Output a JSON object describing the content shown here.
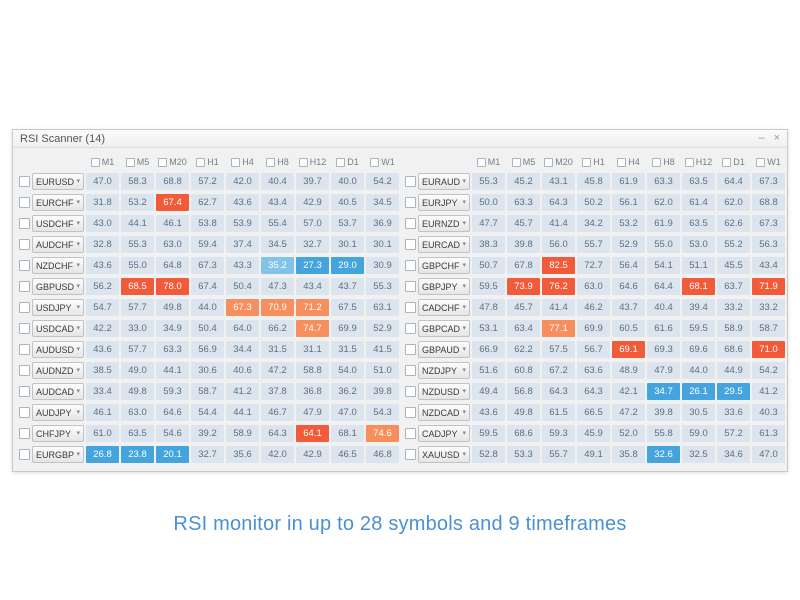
{
  "window": {
    "title": "RSI Scanner (14)",
    "minimize_icon": "–",
    "close_icon": "×"
  },
  "caption": "RSI monitor in up to 28 symbols and 9 timeframes",
  "timeframes": [
    "M1",
    "M5",
    "M20",
    "H1",
    "H4",
    "H8",
    "H12",
    "D1",
    "W1"
  ],
  "legend_colors": {
    "hot1": "#f15b39",
    "hot2": "#f68e5e",
    "cold1": "#44a5de",
    "cold2": "#82c4e9",
    "cell_default": "#dce5ee",
    "caption_text": "#4a90d2"
  },
  "panels": [
    {
      "name": "left",
      "rows": [
        {
          "symbol": "EURUSD",
          "values": [
            "47.0",
            "58.3",
            "68.8",
            "57.2",
            "42.0",
            "40.4",
            "39.7",
            "40.0",
            "54.2"
          ],
          "highlights": {}
        },
        {
          "symbol": "EURCHF",
          "values": [
            "31.8",
            "53.2",
            "67.4",
            "62.7",
            "43.6",
            "43.4",
            "42.9",
            "40.5",
            "34.5"
          ],
          "highlights": {
            "2": "hot1"
          }
        },
        {
          "symbol": "USDCHF",
          "values": [
            "43.0",
            "44.1",
            "46.1",
            "53.8",
            "53.9",
            "55.4",
            "57.0",
            "53.7",
            "36.9"
          ],
          "highlights": {}
        },
        {
          "symbol": "AUDCHF",
          "values": [
            "32.8",
            "55.3",
            "63.0",
            "59.4",
            "37.4",
            "34.5",
            "32.7",
            "30.1",
            "30.1"
          ],
          "highlights": {}
        },
        {
          "symbol": "NZDCHF",
          "values": [
            "43.6",
            "55.0",
            "64.8",
            "67.3",
            "43.3",
            "35.2",
            "27.3",
            "29.0",
            "30.9"
          ],
          "highlights": {
            "5": "cold2",
            "6": "cold1",
            "7": "cold1"
          }
        },
        {
          "symbol": "GBPUSD",
          "values": [
            "56.2",
            "68.5",
            "78.0",
            "67.4",
            "50.4",
            "47.3",
            "43.4",
            "43.7",
            "55.3"
          ],
          "highlights": {
            "1": "hot1",
            "2": "hot1"
          }
        },
        {
          "symbol": "USDJPY",
          "values": [
            "54.7",
            "57.7",
            "49.8",
            "44.0",
            "67.3",
            "70.9",
            "71.2",
            "67.5",
            "63.1"
          ],
          "highlights": {
            "4": "hot2",
            "5": "hot2",
            "6": "hot2"
          }
        },
        {
          "symbol": "USDCAD",
          "values": [
            "42.2",
            "33.0",
            "34.9",
            "50.4",
            "64.0",
            "66.2",
            "74.7",
            "69.9",
            "52.9"
          ],
          "highlights": {
            "6": "hot2"
          }
        },
        {
          "symbol": "AUDUSD",
          "values": [
            "43.6",
            "57.7",
            "63.3",
            "56.9",
            "34.4",
            "31.5",
            "31.1",
            "31.5",
            "41.5"
          ],
          "highlights": {}
        },
        {
          "symbol": "AUDNZD",
          "values": [
            "38.5",
            "49.0",
            "44.1",
            "30.6",
            "40.6",
            "47.2",
            "58.8",
            "54.0",
            "51.0"
          ],
          "highlights": {}
        },
        {
          "symbol": "AUDCAD",
          "values": [
            "33.4",
            "49.8",
            "59.3",
            "58.7",
            "41.2",
            "37.8",
            "36.8",
            "36.2",
            "39.8"
          ],
          "highlights": {}
        },
        {
          "symbol": "AUDJPY",
          "values": [
            "46.1",
            "63.0",
            "64.6",
            "54.4",
            "44.1",
            "46.7",
            "47.9",
            "47.0",
            "54.3"
          ],
          "highlights": {}
        },
        {
          "symbol": "CHFJPY",
          "values": [
            "61.0",
            "63.5",
            "54.6",
            "39.2",
            "58.9",
            "64.3",
            "64.1",
            "68.1",
            "74.6"
          ],
          "highlights": {
            "6": "hot1",
            "8": "hot2"
          }
        },
        {
          "symbol": "EURGBP",
          "values": [
            "26.8",
            "23.8",
            "20.1",
            "32.7",
            "35.6",
            "42.0",
            "42.9",
            "46.5",
            "46.8"
          ],
          "highlights": {
            "0": "cold1",
            "1": "cold1",
            "2": "cold1"
          }
        }
      ]
    },
    {
      "name": "right",
      "rows": [
        {
          "symbol": "EURAUD",
          "values": [
            "55.3",
            "45.2",
            "43.1",
            "45.8",
            "61.9",
            "63.3",
            "63.5",
            "64.4",
            "67.3"
          ],
          "highlights": {}
        },
        {
          "symbol": "EURJPY",
          "values": [
            "50.0",
            "63.3",
            "64.3",
            "50.2",
            "56.1",
            "62.0",
            "61.4",
            "62.0",
            "68.8"
          ],
          "highlights": {}
        },
        {
          "symbol": "EURNZD",
          "values": [
            "47.7",
            "45.7",
            "41.4",
            "34.2",
            "53.2",
            "61.9",
            "63.5",
            "62.6",
            "67.3"
          ],
          "highlights": {}
        },
        {
          "symbol": "EURCAD",
          "values": [
            "38.3",
            "39.8",
            "56.0",
            "55.7",
            "52.9",
            "55.0",
            "53.0",
            "55.2",
            "56.3"
          ],
          "highlights": {}
        },
        {
          "symbol": "GBPCHF",
          "values": [
            "50.7",
            "67.8",
            "82.5",
            "72.7",
            "56.4",
            "54.1",
            "51.1",
            "45.5",
            "43.4"
          ],
          "highlights": {
            "2": "hot1"
          }
        },
        {
          "symbol": "GBPJPY",
          "values": [
            "59.5",
            "73.9",
            "76.2",
            "63.0",
            "64.6",
            "64.4",
            "68.1",
            "63.7",
            "71.9"
          ],
          "highlights": {
            "1": "hot1",
            "2": "hot1",
            "6": "hot1",
            "8": "hot1"
          }
        },
        {
          "symbol": "CADCHF",
          "values": [
            "47.8",
            "45.7",
            "41.4",
            "46.2",
            "43.7",
            "40.4",
            "39.4",
            "33.2",
            "33.2"
          ],
          "highlights": {}
        },
        {
          "symbol": "GBPCAD",
          "values": [
            "53.1",
            "63.4",
            "77.1",
            "69.9",
            "60.5",
            "61.6",
            "59.5",
            "58.9",
            "58.7"
          ],
          "highlights": {
            "2": "hot2"
          }
        },
        {
          "symbol": "GBPAUD",
          "values": [
            "66.9",
            "62.2",
            "57.5",
            "56.7",
            "69.1",
            "69.3",
            "69.6",
            "68.6",
            "71.0"
          ],
          "highlights": {
            "4": "hot1",
            "8": "hot1"
          }
        },
        {
          "symbol": "NZDJPY",
          "values": [
            "51.6",
            "60.8",
            "67.2",
            "63.6",
            "48.9",
            "47.9",
            "44.0",
            "44.9",
            "54.2"
          ],
          "highlights": {}
        },
        {
          "symbol": "NZDUSD",
          "values": [
            "49.4",
            "56.8",
            "64.3",
            "64.3",
            "42.1",
            "34.7",
            "26.1",
            "29.5",
            "41.2"
          ],
          "highlights": {
            "5": "cold1",
            "6": "cold1",
            "7": "cold1"
          }
        },
        {
          "symbol": "NZDCAD",
          "values": [
            "43.6",
            "49.8",
            "61.5",
            "66.5",
            "47.2",
            "39.8",
            "30.5",
            "33.6",
            "40.3"
          ],
          "highlights": {}
        },
        {
          "symbol": "CADJPY",
          "values": [
            "59.5",
            "68.6",
            "59.3",
            "45.9",
            "52.0",
            "55.8",
            "59.0",
            "57.2",
            "61.3"
          ],
          "highlights": {}
        },
        {
          "symbol": "XAUUSD",
          "values": [
            "52.8",
            "53.3",
            "55.7",
            "49.1",
            "35.8",
            "32.6",
            "32.5",
            "34.6",
            "47.0"
          ],
          "highlights": {
            "5": "cold1"
          }
        }
      ]
    }
  ]
}
